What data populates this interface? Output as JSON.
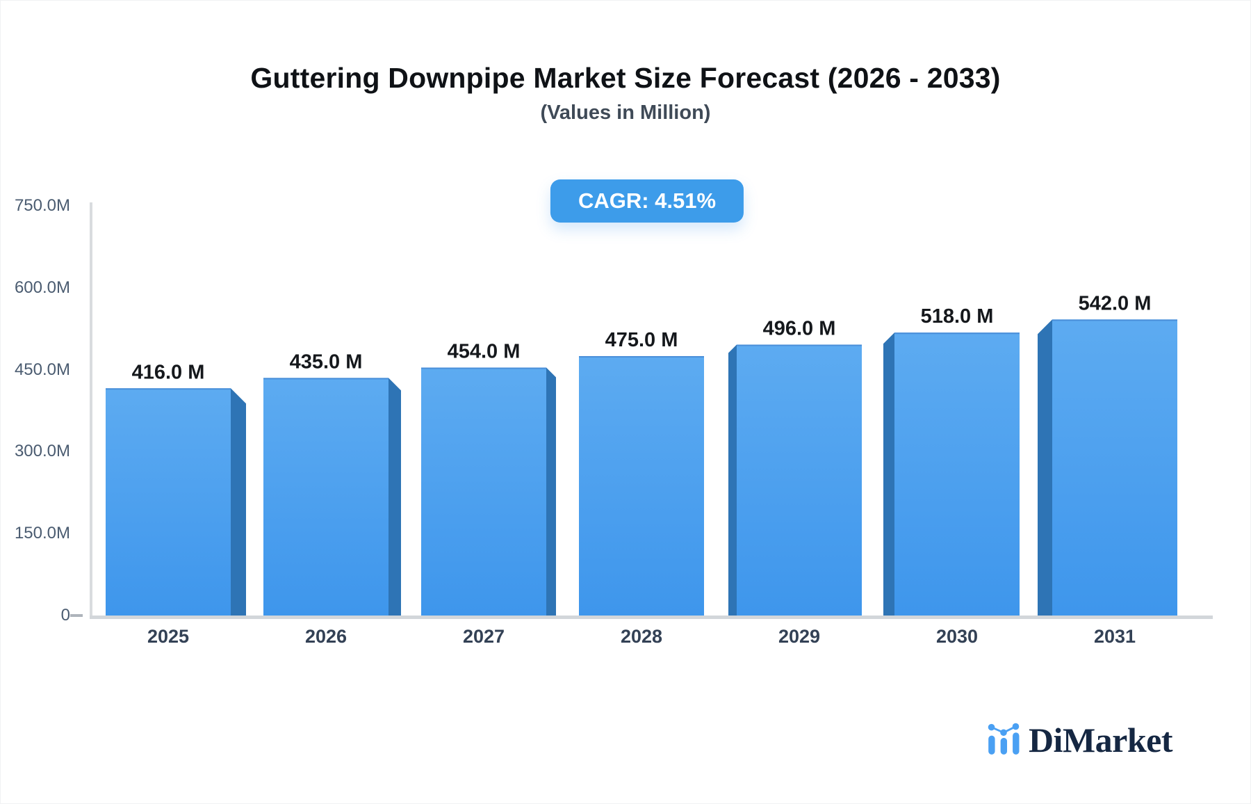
{
  "header": {
    "title": "Guttering Downpipe Market Size Forecast (2026 - 2033)",
    "subtitle": "(Values in Million)"
  },
  "cagr_badge": {
    "label": "CAGR: 4.51%"
  },
  "chart_data": {
    "type": "bar",
    "title": "Guttering Downpipe Market Size Forecast (2026 - 2033)",
    "subtitle": "(Values in Million)",
    "annotation": "CAGR: 4.51%",
    "categories": [
      "2025",
      "2026",
      "2027",
      "2028",
      "2029",
      "2030",
      "2031"
    ],
    "values": [
      416.0,
      435.0,
      454.0,
      475.0,
      496.0,
      518.0,
      542.0
    ],
    "value_labels": [
      "416.0 M",
      "435.0 M",
      "454.0 M",
      "475.0 M",
      "496.0 M",
      "518.0 M",
      "542.0 M"
    ],
    "unit": "Million",
    "ylim": [
      0,
      750
    ],
    "y_ticks": [
      {
        "label": "750.0M",
        "value": 750
      },
      {
        "label": "600.0M",
        "value": 600
      },
      {
        "label": "450.0M",
        "value": 450
      },
      {
        "label": "300.0M",
        "value": 300
      },
      {
        "label": "150.0M",
        "value": 150
      },
      {
        "label": "0",
        "value": 0
      }
    ],
    "grid": false,
    "legend": false,
    "bar_3d_effect": "perspective toward center: left bars show right side, right bars show left side",
    "colors": {
      "bar_face_top": "#5dabf1",
      "bar_face_bottom": "#3e96ec",
      "bar_top_edge": "#4a8fd9",
      "bar_side": "#2e74b5",
      "axis_line": "#d9dcdf",
      "baseline": "#d2d6da",
      "badge_bg": "#3d9cea",
      "badge_text": "#ffffff",
      "value_label": "#15181c",
      "x_label": "#334155",
      "y_label": "#4a5b70"
    }
  },
  "logo": {
    "text": "DiMarket",
    "icon": "mini-bar-line-chart-icon",
    "color_navy": "#152742",
    "color_blue": "#4aa0f3"
  }
}
